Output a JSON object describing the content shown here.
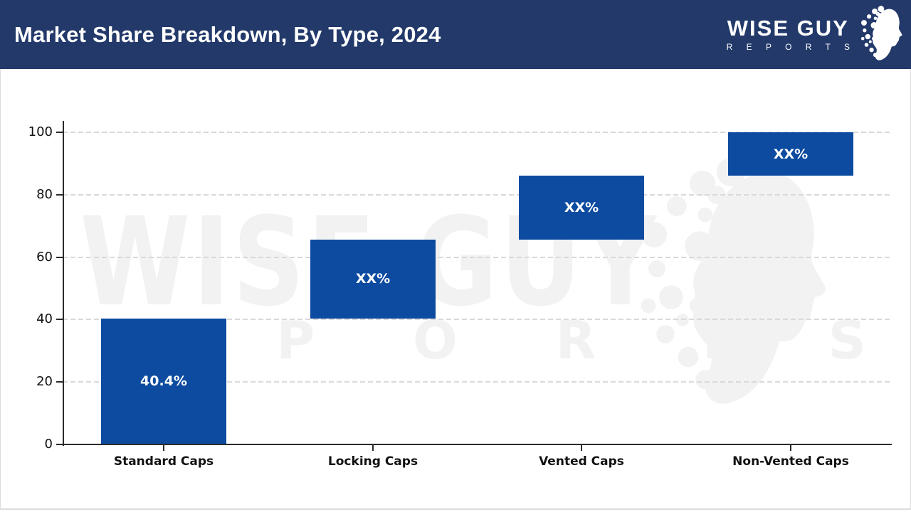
{
  "header": {
    "title": "Market Share Breakdown, By Type, 2024",
    "logo": {
      "line1": "WISE GUY",
      "line2": "R E P O R T S"
    }
  },
  "watermark": {
    "line1": "WISE GUY",
    "line2": "P O R T S"
  },
  "colors": {
    "header_bg": "#22396A",
    "bar": "#0C4BA0",
    "axis": "#2b2b2b",
    "grid": "#d9d9d9",
    "bar_label": "#ffffff",
    "watermark": "#f2f2f2"
  },
  "chart_data": {
    "type": "bar",
    "subtype": "waterfall",
    "title": "Market Share Breakdown, By Type, 2024",
    "xlabel": "",
    "ylabel": "",
    "legend": "none",
    "grid": "horizontal-dashed",
    "ylim": [
      0,
      105
    ],
    "y_ticks": [
      0,
      20,
      40,
      60,
      80,
      100
    ],
    "categories": [
      "Standard Caps",
      "Locking Caps",
      "Vented Caps",
      "Non-Vented Caps"
    ],
    "segments": [
      {
        "category": "Standard Caps",
        "start": 0,
        "end": 40.4,
        "label": "40.4%"
      },
      {
        "category": "Locking Caps",
        "start": 40.4,
        "end": 65.7,
        "label": "XX%"
      },
      {
        "category": "Vented Caps",
        "start": 65.7,
        "end": 86.0,
        "label": "XX%"
      },
      {
        "category": "Non-Vented Caps",
        "start": 86.0,
        "end": 100,
        "label": "XX%"
      }
    ]
  }
}
